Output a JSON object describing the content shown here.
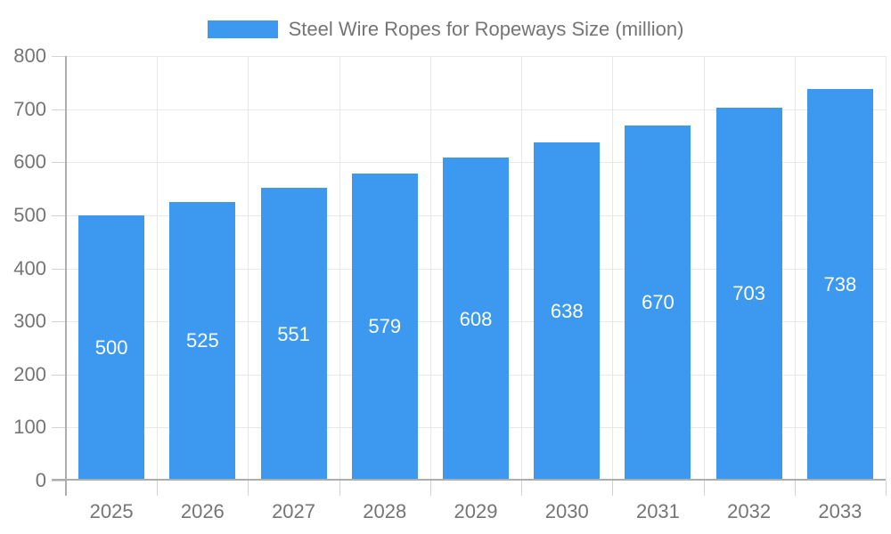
{
  "legend": {
    "label": "Steel Wire Ropes for Ropeways Size (million)"
  },
  "chart_data": {
    "type": "bar",
    "title": "Steel Wire Ropes for Ropeways Size (million)",
    "categories": [
      "2025",
      "2026",
      "2027",
      "2028",
      "2029",
      "2030",
      "2031",
      "2032",
      "2033"
    ],
    "values": [
      500,
      525,
      551,
      579,
      608,
      638,
      670,
      703,
      738
    ],
    "xlabel": "",
    "ylabel": "",
    "ylim": [
      0,
      800
    ],
    "ytick_step": 100,
    "grid": true,
    "legend_position": "top-center",
    "bar_color": "#3D99F0",
    "value_label_color": "#FFFFFF",
    "axis_text_color": "#757575",
    "grid_color": "#E8E8E8",
    "tick_color": "#D2D2D2",
    "axis_line_color": "#ADADAD",
    "background": "#FFFFFF"
  }
}
